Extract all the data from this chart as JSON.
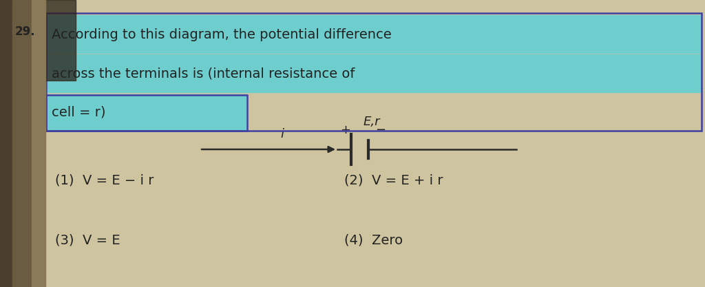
{
  "bg_color": "#cfc4a0",
  "question_number": "29.",
  "question_text_line1": "According to this diagram, the potential difference",
  "question_text_line2": "across the terminals is (internal resistance of",
  "question_text_line3": "cell = r)",
  "highlight_color": "#6ecece",
  "outline_color": "#4040a0",
  "circuit_label": "E,r",
  "circuit_current_label": "i",
  "circuit_plus": "+",
  "circuit_minus": "−",
  "options": [
    "(1)  V = E − i r",
    "(2)  V = E + i r",
    "(3)  V = E",
    "(4)  Zero"
  ],
  "text_color": "#222222",
  "line_color": "#2a2a2a",
  "font_size_question": 14,
  "font_size_options": 14,
  "font_size_circuit": 13,
  "binding_dark": "#4a3f2f",
  "binding_mid": "#6a5c40",
  "binding_light": "#8a7a5a"
}
